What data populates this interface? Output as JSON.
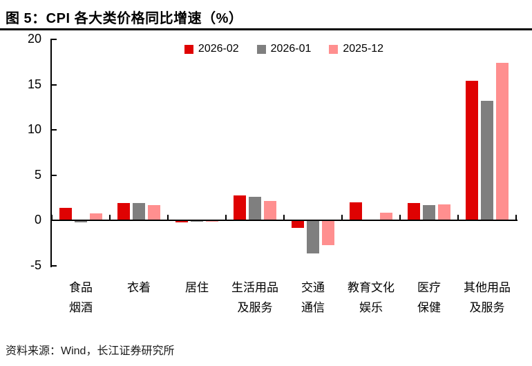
{
  "title": "图 5：CPI 各大类价格同比增速（%）",
  "source_note": "资料来源：Wind，长江证券研究所",
  "colors": {
    "series_2026_02": "#df0202",
    "series_2026_01": "#7f7f7f",
    "series_2025_12": "#ff8f8f",
    "axis": "#000000",
    "text": "#000000"
  },
  "chart_data": {
    "type": "bar",
    "title": "图 5：CPI 各大类价格同比增速（%）",
    "categories": [
      [
        "食品",
        "烟酒"
      ],
      [
        "衣着"
      ],
      [
        "居住"
      ],
      [
        "生活用品",
        "及服务"
      ],
      [
        "交通",
        "通信"
      ],
      [
        "教育文化",
        "娱乐"
      ],
      [
        "医疗",
        "保健"
      ],
      [
        "其他用品",
        "及服务"
      ]
    ],
    "series": [
      {
        "name": "2026-02",
        "color": "#df0202",
        "values": [
          1.4,
          1.9,
          -0.2,
          2.8,
          -0.8,
          2.0,
          1.9,
          15.4
        ]
      },
      {
        "name": "2026-01",
        "color": "#7f7f7f",
        "values": [
          -0.2,
          1.9,
          -0.1,
          2.6,
          -3.6,
          0.0,
          1.7,
          13.2
        ]
      },
      {
        "name": "2025-12",
        "color": "#ff8f8f",
        "values": [
          0.8,
          1.7,
          -0.1,
          2.2,
          -2.7,
          0.9,
          1.8,
          17.4
        ]
      }
    ],
    "ylim": [
      -5,
      20
    ],
    "yticks": [
      20,
      15,
      10,
      5,
      0,
      -5
    ],
    "ylabel": "",
    "xlabel": "",
    "grid": false,
    "legend_position": "top-center"
  }
}
